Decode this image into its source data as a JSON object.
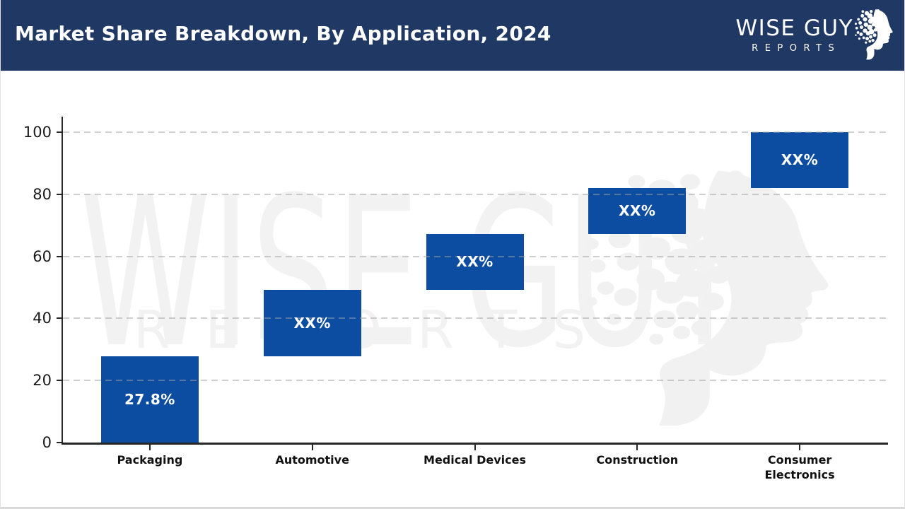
{
  "header": {
    "title": "Market Share Breakdown, By Application, 2024",
    "logo": {
      "line1": "WISE GUY",
      "line2": "REPORTS"
    }
  },
  "watermark": {
    "line1": "WISE GUY",
    "line2": "REPORTS"
  },
  "chart_data": {
    "type": "bar",
    "subtype": "waterfall",
    "title": "Market Share Breakdown, By Application, 2024",
    "categories": [
      "Packaging",
      "Automotive",
      "Medical Devices",
      "Construction",
      "Consumer Electronics"
    ],
    "series": [
      {
        "name": "Market share (%)",
        "segments": [
          {
            "category": "Packaging",
            "start": 0,
            "end": 27.8,
            "label": "27.8%"
          },
          {
            "category": "Automotive",
            "start": 27.8,
            "end": 49.3,
            "label": "XX%"
          },
          {
            "category": "Medical Devices",
            "start": 49.3,
            "end": 67.3,
            "label": "XX%"
          },
          {
            "category": "Construction",
            "start": 67.3,
            "end": 82.1,
            "label": "XX%"
          },
          {
            "category": "Consumer Electronics",
            "start": 82.1,
            "end": 100,
            "label": "XX%"
          }
        ]
      }
    ],
    "ylim": [
      0,
      105
    ],
    "yticks": [
      0,
      20,
      40,
      60,
      80,
      100
    ],
    "grid": "horizontal-dashed",
    "legend": "none",
    "bar_color": "#0c4da2",
    "value_label_color": "#ffffff"
  },
  "colors": {
    "header_bg": "#1f3864",
    "bar_blue": "#0c4da2",
    "axis": "#262626",
    "grid": "#c8c8c8",
    "watermark": "#f1f1f1"
  }
}
